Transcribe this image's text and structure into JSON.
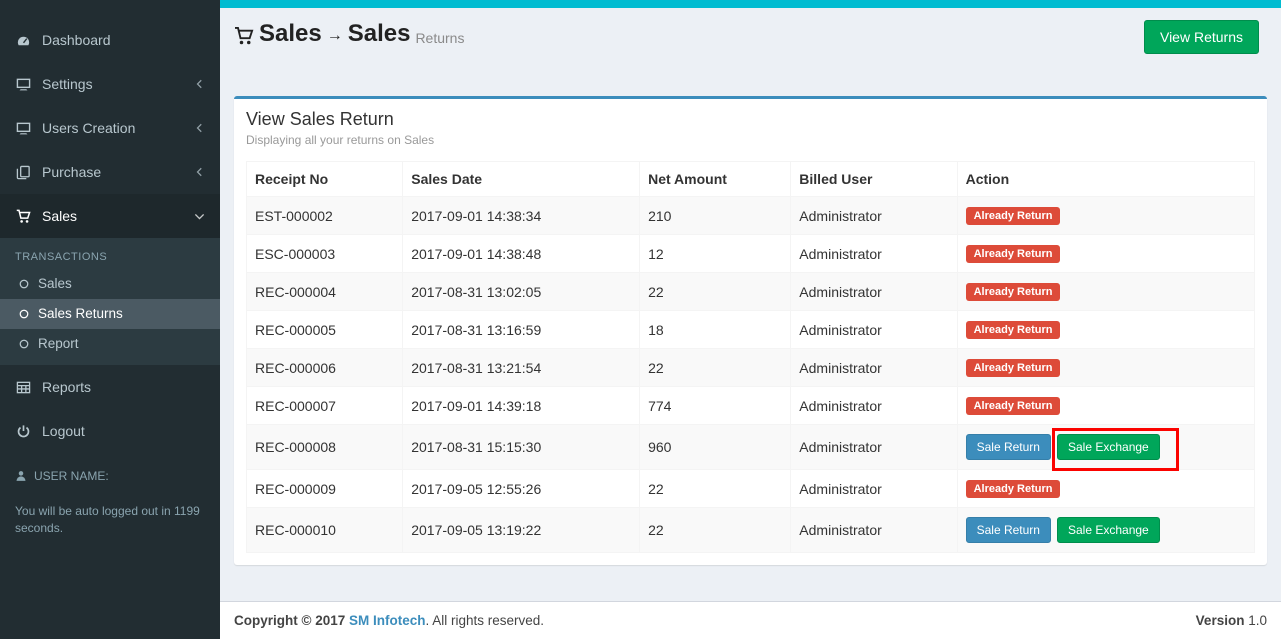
{
  "colors": {
    "top_accent": "#00bcd1",
    "sidebar_bg": "#222d32",
    "sidebar_submenu_bg": "#2c3b41",
    "panel_accent_blue": "#3c8dbc",
    "badge_red": "#dd4b39",
    "button_blue": "#3c8dbc",
    "button_green": "#00a65a",
    "annotation_red": "#fb0300"
  },
  "sidebar": {
    "items": [
      {
        "label": "Dashboard",
        "icon": "dashboard-icon"
      },
      {
        "label": "Settings",
        "icon": "monitor-icon",
        "chevron": "left"
      },
      {
        "label": "Users Creation",
        "icon": "monitor-icon",
        "chevron": "left"
      },
      {
        "label": "Purchase",
        "icon": "copy-icon",
        "chevron": "left"
      },
      {
        "label": "Sales",
        "icon": "cart-icon",
        "chevron": "down",
        "active": true
      }
    ],
    "section_label": "TRANSACTIONS",
    "sub_items": [
      {
        "label": "Sales"
      },
      {
        "label": "Sales Returns",
        "active": true
      },
      {
        "label": "Report"
      }
    ],
    "reports_label": "Reports",
    "logout_label": "Logout",
    "user_label": "USER NAME:",
    "auto_logout_notice": "You will be auto logged out in 1199 seconds."
  },
  "header": {
    "breadcrumb_primary": "Sales",
    "breadcrumb_arrow": "→",
    "breadcrumb_secondary": "Sales",
    "breadcrumb_sub": "Returns",
    "view_returns_button": "View Returns"
  },
  "panel": {
    "title": "View Sales Return",
    "subtitle": "Displaying all your returns on Sales"
  },
  "table": {
    "columns": [
      "Receipt No",
      "Sales Date",
      "Net Amount",
      "Billed User",
      "Action"
    ],
    "rows": [
      {
        "receipt_no": "EST-000002",
        "sales_date": "2017-09-01 14:38:34",
        "net_amount": "210",
        "billed_user": "Administrator",
        "actions": [
          {
            "label": "Already Return",
            "type": "badge-red"
          }
        ]
      },
      {
        "receipt_no": "ESC-000003",
        "sales_date": "2017-09-01 14:38:48",
        "net_amount": "12",
        "billed_user": "Administrator",
        "actions": [
          {
            "label": "Already Return",
            "type": "badge-red"
          }
        ]
      },
      {
        "receipt_no": "REC-000004",
        "sales_date": "2017-08-31 13:02:05",
        "net_amount": "22",
        "billed_user": "Administrator",
        "actions": [
          {
            "label": "Already Return",
            "type": "badge-red"
          }
        ]
      },
      {
        "receipt_no": "REC-000005",
        "sales_date": "2017-08-31 13:16:59",
        "net_amount": "18",
        "billed_user": "Administrator",
        "actions": [
          {
            "label": "Already Return",
            "type": "badge-red"
          }
        ]
      },
      {
        "receipt_no": "REC-000006",
        "sales_date": "2017-08-31 13:21:54",
        "net_amount": "22",
        "billed_user": "Administrator",
        "actions": [
          {
            "label": "Already Return",
            "type": "badge-red"
          }
        ]
      },
      {
        "receipt_no": "REC-000007",
        "sales_date": "2017-09-01 14:39:18",
        "net_amount": "774",
        "billed_user": "Administrator",
        "actions": [
          {
            "label": "Already Return",
            "type": "badge-red"
          }
        ]
      },
      {
        "receipt_no": "REC-000008",
        "sales_date": "2017-08-31 15:15:30",
        "net_amount": "960",
        "billed_user": "Administrator",
        "actions": [
          {
            "label": "Sale Return",
            "type": "button-blue"
          },
          {
            "label": "Sale Exchange",
            "type": "button-green",
            "highlighted": true
          }
        ]
      },
      {
        "receipt_no": "REC-000009",
        "sales_date": "2017-09-05 12:55:26",
        "net_amount": "22",
        "billed_user": "Administrator",
        "actions": [
          {
            "label": "Already Return",
            "type": "badge-red"
          }
        ]
      },
      {
        "receipt_no": "REC-000010",
        "sales_date": "2017-09-05 13:19:22",
        "net_amount": "22",
        "billed_user": "Administrator",
        "actions": [
          {
            "label": "Sale Return",
            "type": "button-blue"
          },
          {
            "label": "Sale Exchange",
            "type": "button-green"
          }
        ]
      }
    ]
  },
  "footer": {
    "copyright_bold": "Copyright © 2017",
    "company": "SM Infotech",
    "rights_text": ". All rights reserved.",
    "version_label": "Version",
    "version_value": "1.0"
  }
}
